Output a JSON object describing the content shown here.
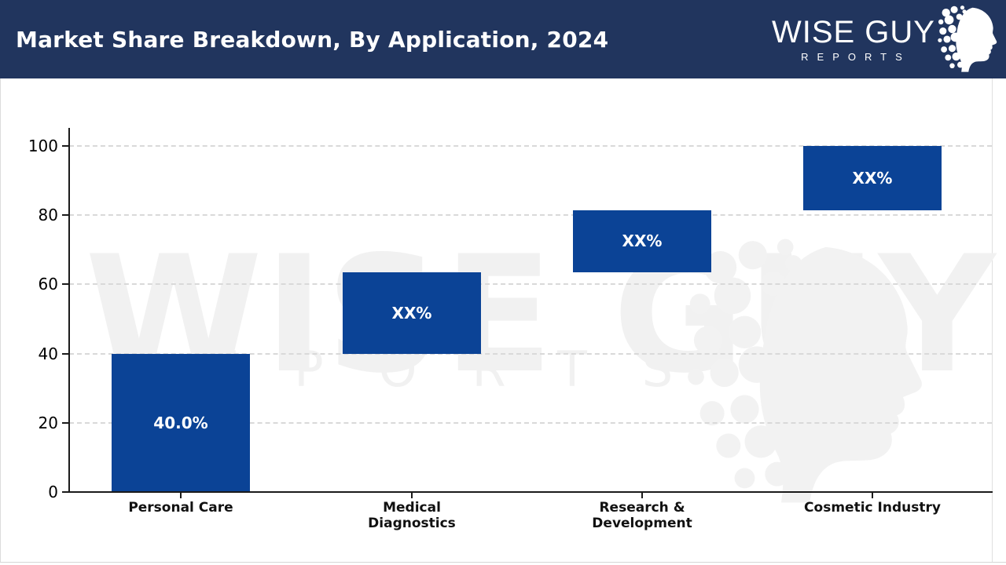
{
  "header": {
    "title": "Market Share Breakdown, By Application, 2024",
    "bg_color": "#21355E",
    "logo": {
      "brand_top": "WISE GUY",
      "brand_bottom": "REPORTS",
      "head_icon": "dotted-head-profile"
    }
  },
  "watermark": {
    "line1": "WISE GUY",
    "line2": "REPORTS",
    "head_icon": "dotted-head-profile",
    "color": "#f1f1f1"
  },
  "chart_data": {
    "type": "bar",
    "variant": "waterfall",
    "title": "Market Share Breakdown, By Application, 2024",
    "categories": [
      [
        "Personal Care"
      ],
      [
        "Medical",
        "Diagnostics"
      ],
      [
        "Research &",
        "Development"
      ],
      [
        "Cosmetic Industry"
      ]
    ],
    "segments": [
      {
        "category": "Personal Care",
        "start": 0,
        "end": 40,
        "label": "40.0%"
      },
      {
        "category": "Medical Diagnostics",
        "start": 40,
        "end": 63.5,
        "label": "XX%"
      },
      {
        "category": "Research & Development",
        "start": 63.5,
        "end": 81.5,
        "label": "XX%"
      },
      {
        "category": "Cosmetic Industry",
        "start": 81.5,
        "end": 100,
        "label": "XX%"
      }
    ],
    "ylim": [
      0,
      100
    ],
    "yticks": [
      0,
      20,
      40,
      60,
      80,
      100
    ],
    "bar_color": "#0B4396",
    "bar_label_color": "#ffffff",
    "axis_color": "#1a1a1a",
    "grid": {
      "horizontal": true,
      "style": "dashed",
      "color": "#d9d9d9"
    },
    "legend": "none"
  }
}
